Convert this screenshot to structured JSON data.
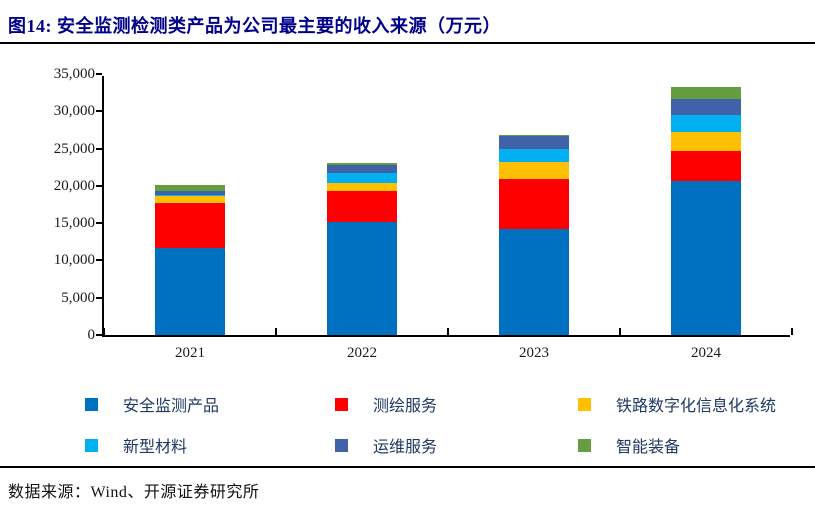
{
  "figure": {
    "title": "图14:  安全监测检测类产品为公司最主要的收入来源（万元）",
    "source": "数据来源：Wind、开源证券研究所"
  },
  "chart_data": {
    "type": "bar",
    "stacked": true,
    "title": "安全监测检测类产品为公司最主要的收入来源",
    "unit": "万元",
    "categories": [
      "2021",
      "2022",
      "2023",
      "2024"
    ],
    "series": [
      {
        "name": "安全监测产品",
        "color": "#0070C0",
        "values": [
          11700,
          15100,
          14200,
          20600
        ]
      },
      {
        "name": "测绘服务",
        "color": "#FF0000",
        "values": [
          6000,
          4200,
          6700,
          4100
        ]
      },
      {
        "name": "铁路数字化信息化系统",
        "color": "#FFC000",
        "values": [
          950,
          1100,
          2250,
          2500
        ]
      },
      {
        "name": "新型材料",
        "color": "#00B0F0",
        "values": [
          150,
          1350,
          1800,
          2250
        ]
      },
      {
        "name": "运维服务",
        "color": "#4062A8",
        "values": [
          550,
          1050,
          1700,
          2250
        ]
      },
      {
        "name": "智能装备",
        "color": "#669D41",
        "values": [
          800,
          250,
          200,
          1500
        ]
      }
    ],
    "ylim": [
      0,
      35000
    ],
    "ytick_step": 5000,
    "ytick_labels": [
      "0",
      "5,000",
      "10,000",
      "15,000",
      "20,000",
      "25,000",
      "30,000",
      "35,000"
    ],
    "grid": false,
    "legend_position": "bottom",
    "legend_rows": 2,
    "legend_columns": 3
  }
}
